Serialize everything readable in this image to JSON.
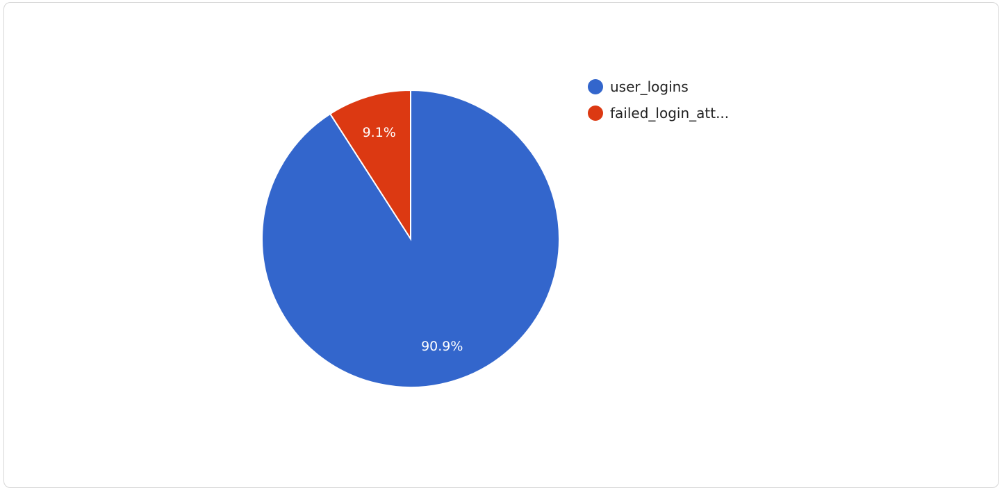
{
  "chart_data": {
    "type": "pie",
    "title": "",
    "slices": [
      {
        "label": "user_logins",
        "legend_text": "user_logins",
        "value": 90.9,
        "display": "90.9%",
        "color": "#3366cc"
      },
      {
        "label": "failed_login_attempts",
        "legend_text": "failed_login_att...",
        "value": 9.1,
        "display": "9.1%",
        "color": "#dc3912"
      }
    ],
    "legend_position": "right",
    "start_angle": "top, clockwise"
  }
}
